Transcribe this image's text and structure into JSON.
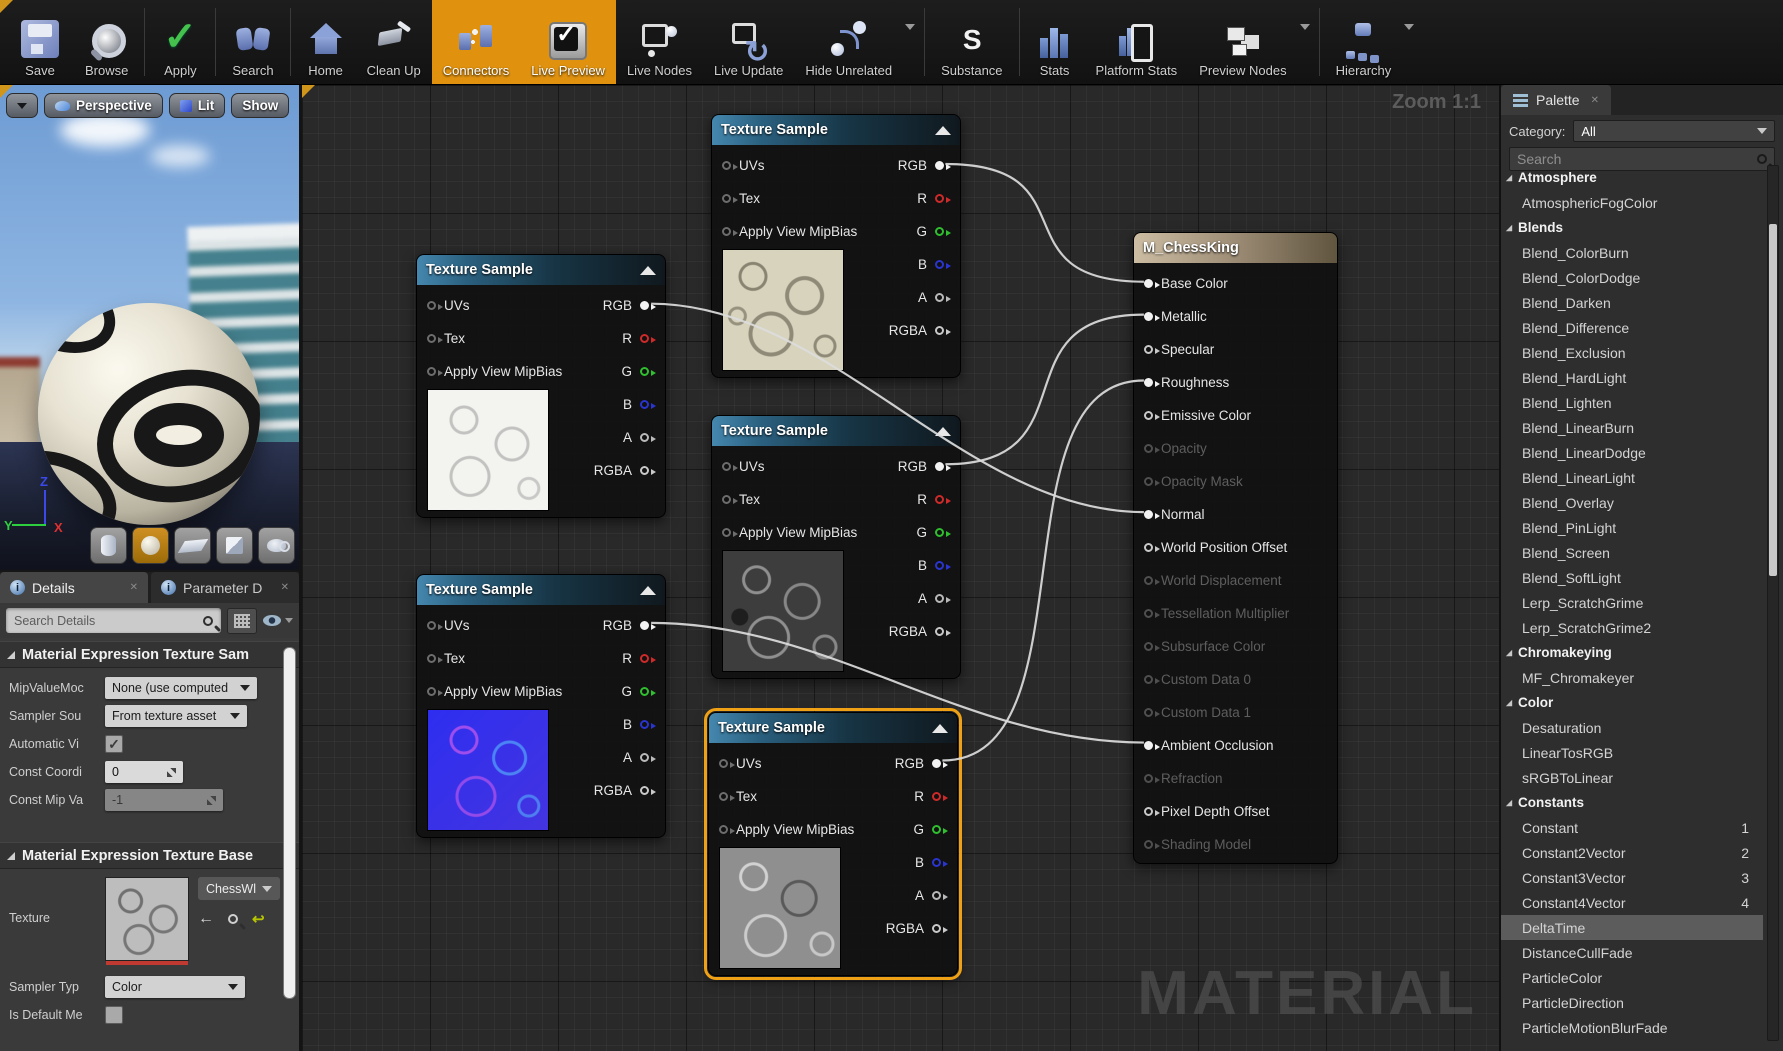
{
  "colors": {
    "accent_orange": "#e0920f",
    "selection_orange": "#efa115",
    "wire": "#dcdcdc",
    "pin_r": "#cf2a2a",
    "pin_g": "#2fbf2f",
    "pin_b": "#2a35cf",
    "pin_white": "#f2f2f2",
    "ts_header_blue": "#2a607f",
    "mat_header_tan": "#a2917a"
  },
  "toolbar": {
    "buttons": [
      {
        "label": "Save",
        "icon": "save"
      },
      {
        "label": "Browse",
        "icon": "browse",
        "divider_after": true
      },
      {
        "label": "Apply",
        "icon": "apply",
        "divider_after": true
      },
      {
        "label": "Search",
        "icon": "search",
        "divider_after": true
      },
      {
        "label": "Home",
        "icon": "home"
      },
      {
        "label": "Clean Up",
        "icon": "cleanup"
      },
      {
        "label": "Connectors",
        "icon": "connectors",
        "active": true
      },
      {
        "label": "Live Preview",
        "icon": "live-preview",
        "active": true
      },
      {
        "label": "Live Nodes",
        "icon": "live-nodes"
      },
      {
        "label": "Live Update",
        "icon": "live-update"
      },
      {
        "label": "Hide Unrelated",
        "icon": "hide-unrelated",
        "dropdown": true,
        "divider_after": true
      },
      {
        "label": "Substance",
        "icon": "substance",
        "divider_after": true
      },
      {
        "label": "Stats",
        "icon": "stats"
      },
      {
        "label": "Platform Stats",
        "icon": "platform-stats"
      },
      {
        "label": "Preview Nodes",
        "icon": "preview-nodes",
        "dropdown": true,
        "divider_after": true
      },
      {
        "label": "Hierarchy",
        "icon": "hierarchy",
        "dropdown": true
      }
    ]
  },
  "viewport": {
    "view_mode": "Perspective",
    "lit_mode": "Lit",
    "show_label": "Show",
    "axis": {
      "x": "X",
      "y": "Y",
      "z": "Z"
    },
    "shape_buttons": [
      "cylinder",
      "sphere",
      "plane",
      "cube",
      "teapot"
    ],
    "selected_shape": "sphere"
  },
  "details": {
    "tabs": [
      {
        "label": "Details",
        "active": true
      },
      {
        "label": "Parameter D",
        "active": false
      }
    ],
    "search_placeholder": "Search Details",
    "section1_title": "Material Expression Texture Sam",
    "mip_value_mode": {
      "label": "MipValueMoc",
      "value": "None (use computed"
    },
    "sampler_source": {
      "label": "Sampler Sou",
      "value": "From texture asset"
    },
    "automatic_view": {
      "label": "Automatic Vi",
      "checked": true
    },
    "const_coordinate": {
      "label": "Const Coordi",
      "value": "0"
    },
    "const_mip_value": {
      "label": "Const Mip Va",
      "value": "-1",
      "disabled": true
    },
    "section2_title": "Material Expression Texture Base",
    "texture": {
      "label": "Texture",
      "asset": "ChessWl"
    },
    "sampler_type": {
      "label": "Sampler Typ",
      "value": "Color"
    },
    "is_default": {
      "label": "Is Default Me",
      "checked": false
    }
  },
  "graph": {
    "zoom_label": "Zoom 1:1",
    "watermark": "MATERIAL",
    "texture_sample": {
      "title": "Texture Sample",
      "inputs": [
        "UVs",
        "Tex",
        "Apply View MipBias"
      ],
      "outputs": [
        {
          "label": "RGB",
          "color": "#f2f2f2",
          "connected": true
        },
        {
          "label": "R",
          "color": "#cf2a2a",
          "connected": false
        },
        {
          "label": "G",
          "color": "#2fbf2f",
          "connected": false
        },
        {
          "label": "B",
          "color": "#2a35cf",
          "connected": false
        },
        {
          "label": "A",
          "color": "#b9b9b9",
          "connected": false
        },
        {
          "label": "RGBA",
          "color": "#c9c9c9",
          "connected": false
        }
      ]
    },
    "texture_sample_nodes": [
      {
        "id": "ts1",
        "thumbnail": "cream-swirl-texture",
        "selected": false
      },
      {
        "id": "ts2",
        "thumbnail": "white-roughness-texture",
        "selected": false
      },
      {
        "id": "ts3",
        "thumbnail": "dark-ao-texture",
        "selected": false
      },
      {
        "id": "ts4",
        "thumbnail": "blue-normal-map-texture",
        "selected": false
      },
      {
        "id": "ts5",
        "thumbnail": "gray-metallic-texture",
        "selected": true
      }
    ],
    "material_node": {
      "title": "M_ChessKing",
      "pins": [
        {
          "label": "Base Color",
          "state": "connected"
        },
        {
          "label": "Metallic",
          "state": "connected"
        },
        {
          "label": "Specular",
          "state": "normal"
        },
        {
          "label": "Roughness",
          "state": "connected"
        },
        {
          "label": "Emissive Color",
          "state": "normal"
        },
        {
          "label": "Opacity",
          "state": "disabled"
        },
        {
          "label": "Opacity Mask",
          "state": "disabled"
        },
        {
          "label": "Normal",
          "state": "connected"
        },
        {
          "label": "World Position Offset",
          "state": "normal"
        },
        {
          "label": "World Displacement",
          "state": "disabled"
        },
        {
          "label": "Tessellation Multiplier",
          "state": "disabled"
        },
        {
          "label": "Subsurface Color",
          "state": "disabled"
        },
        {
          "label": "Custom Data 0",
          "state": "disabled"
        },
        {
          "label": "Custom Data 1",
          "state": "disabled"
        },
        {
          "label": "Ambient Occlusion",
          "state": "connected"
        },
        {
          "label": "Refraction",
          "state": "disabled"
        },
        {
          "label": "Pixel Depth Offset",
          "state": "normal"
        },
        {
          "label": "Shading Model",
          "state": "disabled"
        }
      ]
    },
    "connections": [
      {
        "from": "ts1",
        "from_pin": "RGB",
        "to": "Base Color"
      },
      {
        "from": "ts3",
        "from_pin": "RGB",
        "to": "Metallic"
      },
      {
        "from": "ts5",
        "from_pin": "RGB",
        "to": "Roughness"
      },
      {
        "from": "ts2",
        "from_pin": "RGB",
        "to": "Normal"
      },
      {
        "from": "ts4",
        "from_pin": "RGB",
        "to": "Ambient Occlusion"
      }
    ]
  },
  "palette": {
    "tab_label": "Palette",
    "category_label": "Category:",
    "category_value": "All",
    "search_placeholder": "Search",
    "items": [
      {
        "kind": "header",
        "label": "Atmosphere"
      },
      {
        "kind": "item",
        "label": "AtmosphericFogColor"
      },
      {
        "kind": "header",
        "label": "Blends"
      },
      {
        "kind": "item",
        "label": "Blend_ColorBurn"
      },
      {
        "kind": "item",
        "label": "Blend_ColorDodge"
      },
      {
        "kind": "item",
        "label": "Blend_Darken"
      },
      {
        "kind": "item",
        "label": "Blend_Difference"
      },
      {
        "kind": "item",
        "label": "Blend_Exclusion"
      },
      {
        "kind": "item",
        "label": "Blend_HardLight"
      },
      {
        "kind": "item",
        "label": "Blend_Lighten"
      },
      {
        "kind": "item",
        "label": "Blend_LinearBurn"
      },
      {
        "kind": "item",
        "label": "Blend_LinearDodge"
      },
      {
        "kind": "item",
        "label": "Blend_LinearLight"
      },
      {
        "kind": "item",
        "label": "Blend_Overlay"
      },
      {
        "kind": "item",
        "label": "Blend_PinLight"
      },
      {
        "kind": "item",
        "label": "Blend_Screen"
      },
      {
        "kind": "item",
        "label": "Blend_SoftLight"
      },
      {
        "kind": "item",
        "label": "Lerp_ScratchGrime"
      },
      {
        "kind": "item",
        "label": "Lerp_ScratchGrime2"
      },
      {
        "kind": "header",
        "label": "Chromakeying"
      },
      {
        "kind": "item",
        "label": "MF_Chromakeyer"
      },
      {
        "kind": "header",
        "label": "Color"
      },
      {
        "kind": "item",
        "label": "Desaturation"
      },
      {
        "kind": "item",
        "label": "LinearTosRGB"
      },
      {
        "kind": "item",
        "label": "sRGBToLinear"
      },
      {
        "kind": "header",
        "label": "Constants"
      },
      {
        "kind": "item",
        "label": "Constant",
        "badge": "1"
      },
      {
        "kind": "item",
        "label": "Constant2Vector",
        "badge": "2"
      },
      {
        "kind": "item",
        "label": "Constant3Vector",
        "badge": "3"
      },
      {
        "kind": "item",
        "label": "Constant4Vector",
        "badge": "4"
      },
      {
        "kind": "item",
        "label": "DeltaTime",
        "selected": true
      },
      {
        "kind": "item",
        "label": "DistanceCullFade"
      },
      {
        "kind": "item",
        "label": "ParticleColor"
      },
      {
        "kind": "item",
        "label": "ParticleDirection"
      },
      {
        "kind": "item",
        "label": "ParticleMotionBlurFade"
      }
    ]
  }
}
